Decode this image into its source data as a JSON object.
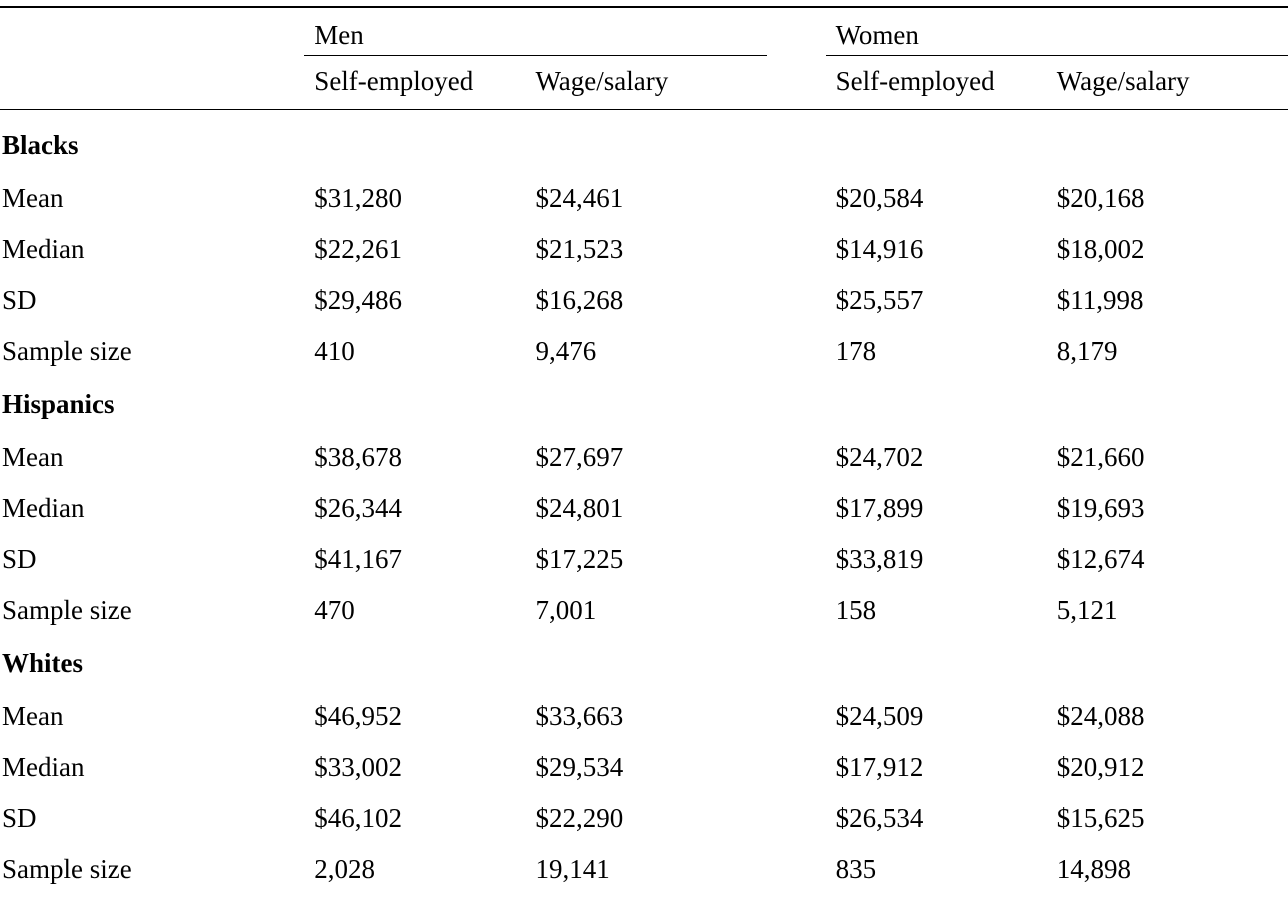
{
  "type": "table",
  "background_color": "#ffffff",
  "text_color": "#000000",
  "rule_color": "#000000",
  "font_family": "Palatino Linotype, Book Antiqua, Palatino, serif",
  "base_fontsize_pt": 20,
  "header": {
    "groups": [
      "Men",
      "Women"
    ],
    "subcolumns": [
      "Self-employed",
      "Wage/salary"
    ]
  },
  "row_labels": [
    "Mean",
    "Median",
    "SD",
    "Sample size"
  ],
  "sections": [
    {
      "title": "Blacks",
      "rows": [
        [
          "$31,280",
          "$24,461",
          "$20,584",
          "$20,168"
        ],
        [
          "$22,261",
          "$21,523",
          "$14,916",
          "$18,002"
        ],
        [
          "$29,486",
          "$16,268",
          "$25,557",
          "$11,998"
        ],
        [
          "410",
          "9,476",
          "178",
          "8,179"
        ]
      ]
    },
    {
      "title": "Hispanics",
      "rows": [
        [
          "$38,678",
          "$27,697",
          "$24,702",
          "$21,660"
        ],
        [
          "$26,344",
          "$24,801",
          "$17,899",
          "$19,693"
        ],
        [
          "$41,167",
          "$17,225",
          "$33,819",
          "$12,674"
        ],
        [
          "470",
          "7,001",
          "158",
          "5,121"
        ]
      ]
    },
    {
      "title": "Whites",
      "rows": [
        [
          "$46,952",
          "$33,663",
          "$24,509",
          "$24,088"
        ],
        [
          "$33,002",
          "$29,534",
          "$17,912",
          "$20,912"
        ],
        [
          "$46,102",
          "$22,290",
          "$26,534",
          "$15,625"
        ],
        [
          "2,028",
          "19,141",
          "835",
          "14,898"
        ]
      ]
    }
  ]
}
